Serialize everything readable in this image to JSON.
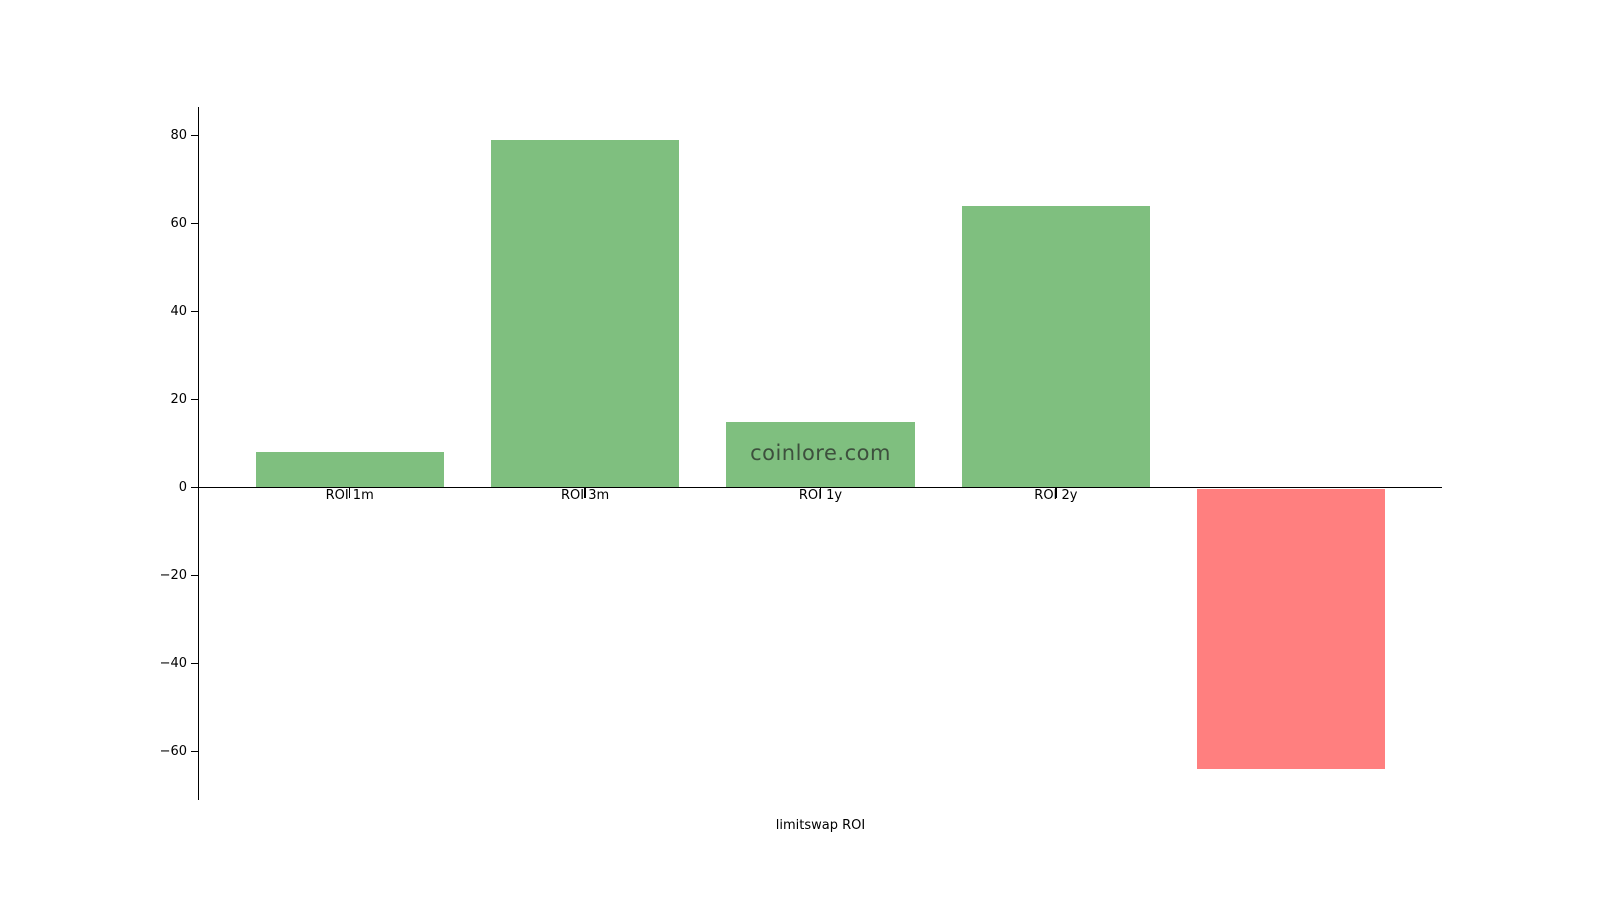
{
  "chart_data": {
    "type": "bar",
    "title": "limitswap ROI",
    "watermark": "coinlore.com",
    "categories": [
      "ROI 1m",
      "ROI 3m",
      "ROI 1y",
      "ROI 2y",
      ""
    ],
    "values": [
      8,
      79,
      15,
      64,
      -64
    ],
    "bar_colors": {
      "positive": "#7fbf7f",
      "negative": "#ff7f7f"
    },
    "y_ticks": [
      80,
      60,
      40,
      20,
      0,
      -20,
      -40,
      -60
    ],
    "y_tick_labels": [
      "80",
      "60",
      "40",
      "20",
      "0",
      "−20",
      "−40",
      "−60"
    ],
    "ylim": [
      -71,
      86.5
    ],
    "xlabel": "",
    "ylabel": "",
    "grid": false,
    "legend": false,
    "axis_color": "#000000",
    "text_color": "#000000",
    "background_color": "#ffffff"
  }
}
